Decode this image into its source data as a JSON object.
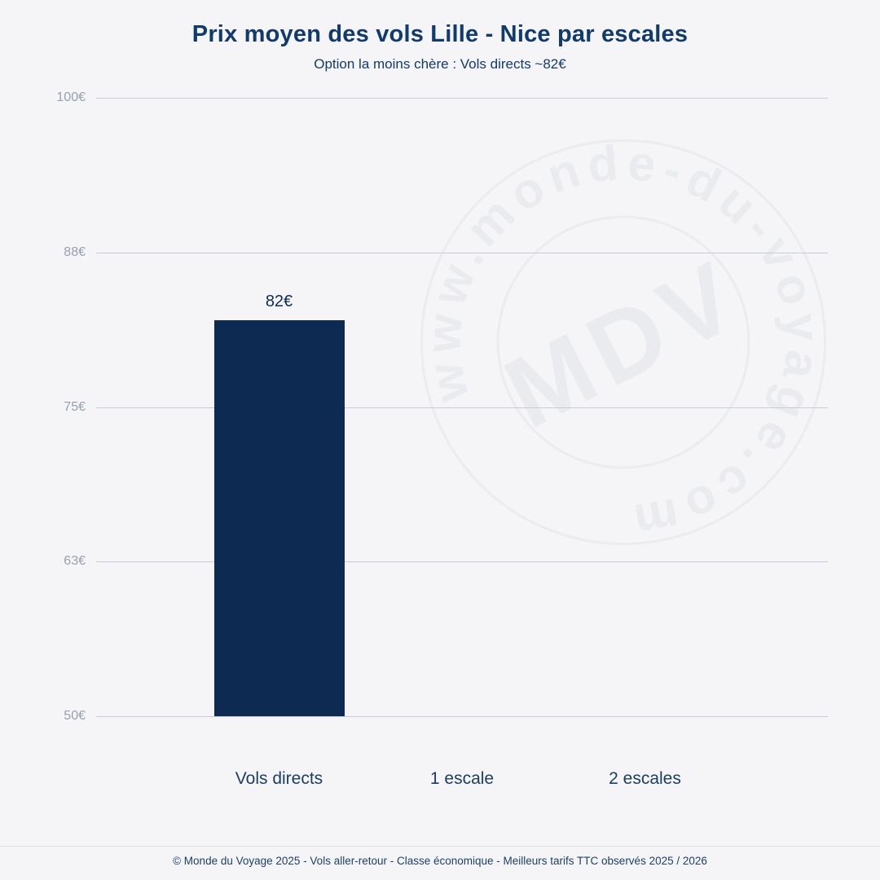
{
  "header": {
    "title": "Prix moyen des vols Lille - Nice par escales",
    "subtitle": "Option la moins chère : Vols directs ~82€"
  },
  "watermark": {
    "ring_text": "www.monde-du-voyage.com",
    "monogram": "MDV"
  },
  "chart_data": {
    "type": "bar",
    "title": "Prix moyen des vols Lille - Nice par escales",
    "subtitle": "Option la moins chère : Vols directs ~82€",
    "categories": [
      "Vols directs",
      "1 escale",
      "2 escales"
    ],
    "values": [
      82,
      null,
      null
    ],
    "value_labels": [
      "82€",
      "",
      ""
    ],
    "unit": "€",
    "ylim": [
      50,
      100
    ],
    "yticks": [
      {
        "value": 100,
        "label": "100€"
      },
      {
        "value": 87.5,
        "label": "88€"
      },
      {
        "value": 75,
        "label": "75€"
      },
      {
        "value": 62.5,
        "label": "63€"
      },
      {
        "value": 50,
        "label": "50€"
      }
    ],
    "grid": true,
    "legend": false,
    "bar_color": "#0d2a52",
    "background_color": "#f5f5f7"
  },
  "footer": {
    "text": "© Monde du Voyage 2025 - Vols aller-retour - Classe économique - Meilleurs tarifs TTC observés 2025 / 2026"
  }
}
